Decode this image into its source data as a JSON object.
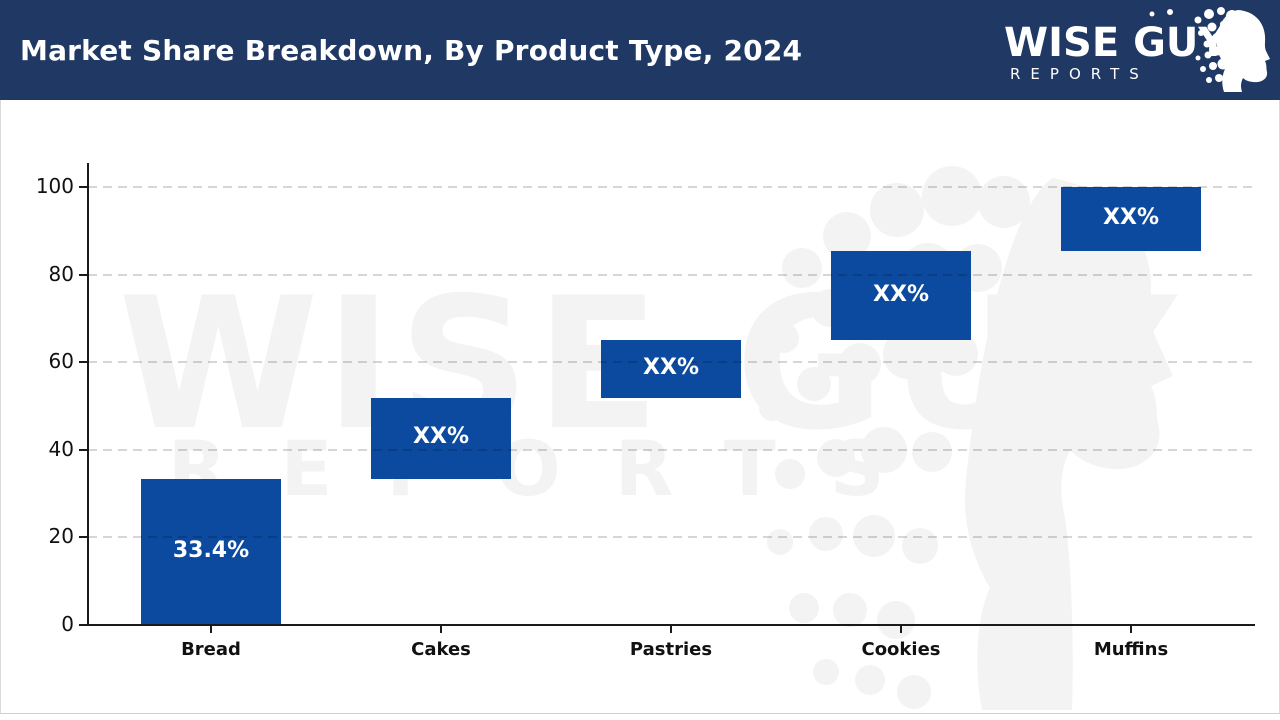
{
  "header": {
    "title": "Market Share Breakdown, By Product Type, 2024",
    "logo": {
      "primary": "WISE GUY",
      "secondary": "REPORTS"
    }
  },
  "watermark": {
    "primary": "WISE GUY",
    "secondary": "REPORTS"
  },
  "colors": {
    "header_bg": "#1f3864",
    "bar": "#0b4a9e",
    "axis": "#1a1a1a",
    "grid_dash_on_white": "#d9d9d9",
    "bar_label": "#ffffff",
    "watermark": "#f3f3f3",
    "tick_label": "#111111"
  },
  "chart_data": {
    "type": "bar",
    "subtype": "floating-waterfall",
    "title": "Market Share Breakdown, By Product Type, 2024",
    "categories": [
      "Bread",
      "Cakes",
      "Pastries",
      "Cookies",
      "Muffins"
    ],
    "segments": [
      {
        "category": "Bread",
        "start": 0,
        "end": 33.4,
        "label": "33.4%"
      },
      {
        "category": "Cakes",
        "start": 33.4,
        "end": 51.8,
        "label": "XX%"
      },
      {
        "category": "Pastries",
        "start": 51.8,
        "end": 65.0,
        "label": "XX%"
      },
      {
        "category": "Cookies",
        "start": 65.0,
        "end": 85.3,
        "label": "XX%"
      },
      {
        "category": "Muffins",
        "start": 85.3,
        "end": 100.0,
        "label": "XX%"
      }
    ],
    "yticks": [
      0,
      20,
      40,
      60,
      80,
      100
    ],
    "ylim": [
      0,
      105
    ],
    "xlabel": "",
    "ylabel": "",
    "grid": "horizontal-dashed",
    "legend": "none"
  }
}
